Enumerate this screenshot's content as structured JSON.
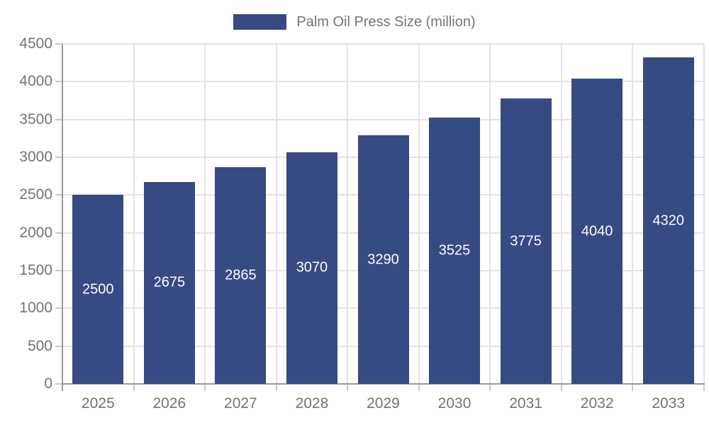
{
  "chart_data": {
    "type": "bar",
    "title": "",
    "legend_label": "Palm Oil Press Size (million)",
    "legend_position": "top",
    "xlabel": "",
    "ylabel": "",
    "categories": [
      "2025",
      "2026",
      "2027",
      "2028",
      "2029",
      "2030",
      "2031",
      "2032",
      "2033"
    ],
    "values": [
      2500,
      2675,
      2865,
      3070,
      3290,
      3525,
      3775,
      4040,
      4320
    ],
    "yticks": [
      0,
      500,
      1000,
      1500,
      2000,
      2500,
      3000,
      3500,
      4000,
      4500
    ],
    "ylim": [
      0,
      4500
    ],
    "grid": true,
    "colors": {
      "bar": "#364A83",
      "value_label": "#FFFFFF",
      "legend_text": "#757575",
      "axis_label": "#737373",
      "grid_line": "#E3E3E3",
      "axis_line": "#9A9A9A",
      "tick_line": "#C9C9C9",
      "background": "#FFFFFF"
    }
  }
}
